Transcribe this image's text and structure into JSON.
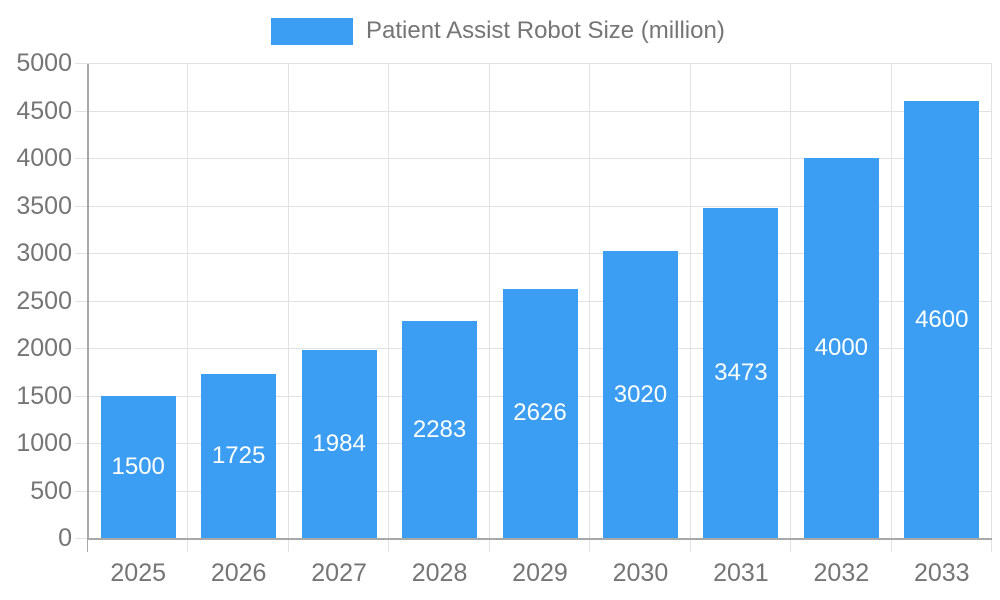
{
  "chart_data": {
    "type": "bar",
    "title": "Patient Assist Robot Size (million)",
    "categories": [
      "2025",
      "2026",
      "2027",
      "2028",
      "2029",
      "2030",
      "2031",
      "2032",
      "2033"
    ],
    "values": [
      1500,
      1725,
      1984,
      2283,
      2626,
      3020,
      3473,
      4000,
      4600
    ],
    "series_name": "Patient Assist Robot Size (million)",
    "xlabel": "",
    "ylabel": "",
    "ylim": [
      0,
      5000
    ],
    "ytick_step": 500,
    "ytick_labels": [
      "0",
      "500",
      "1000",
      "1500",
      "2000",
      "2500",
      "3000",
      "3500",
      "4000",
      "4500",
      "5000"
    ],
    "grid": true,
    "legend_position": "top-center",
    "value_labels_position": "inside-center",
    "colors": {
      "bar": "#3b9ef2",
      "value_label": "#ffffff",
      "axis_text": "#757575",
      "gridline": "#e2e2e2",
      "axis_line": "#a8a8a8"
    }
  }
}
